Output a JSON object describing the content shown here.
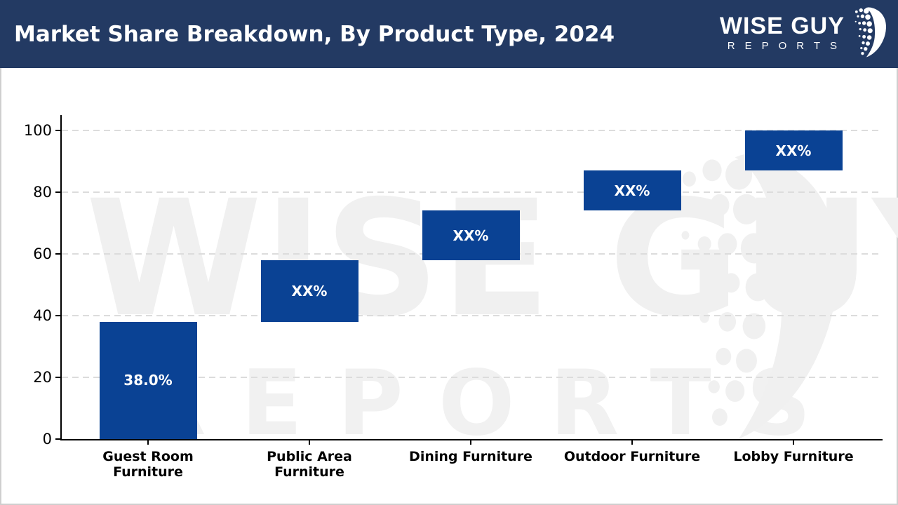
{
  "header": {
    "title": "Market Share Breakdown, By Product Type, 2024",
    "logo_line1": "WISE GUY",
    "logo_line2": "REPORTS"
  },
  "watermark": {
    "line1": "WISE GUY",
    "line2": "REPORTS"
  },
  "chart_data": {
    "type": "bar",
    "subtype": "waterfall",
    "title": "Market Share Breakdown, By Product Type, 2024",
    "categories": [
      "Guest Room Furniture",
      "Public Area Furniture",
      "Dining Furniture",
      "Outdoor Furniture",
      "Lobby Furniture"
    ],
    "category_lines": [
      [
        "Guest Room",
        "Furniture"
      ],
      [
        "Public Area",
        "Furniture"
      ],
      [
        "Dining Furniture"
      ],
      [
        "Outdoor Furniture"
      ],
      [
        "Lobby Furniture"
      ]
    ],
    "series": [
      {
        "name": "Market share (%)",
        "segments": [
          {
            "category": "Guest Room Furniture",
            "start": 0,
            "end": 38,
            "value_label": "38.0%"
          },
          {
            "category": "Public Area Furniture",
            "start": 38,
            "end": 58,
            "value_label": "XX%"
          },
          {
            "category": "Dining Furniture",
            "start": 58,
            "end": 74,
            "value_label": "XX%"
          },
          {
            "category": "Outdoor Furniture",
            "start": 74,
            "end": 87,
            "value_label": "XX%"
          },
          {
            "category": "Lobby Furniture",
            "start": 87,
            "end": 100,
            "value_label": "XX%"
          }
        ]
      }
    ],
    "yticks": [
      0,
      20,
      40,
      60,
      80,
      100
    ],
    "ylim": [
      0,
      105
    ],
    "xlabel": "",
    "ylabel": "",
    "grid": "horizontal-dashed",
    "legend": "none",
    "colors": {
      "bar": "#0a4294",
      "header_bg": "#233a63",
      "grid_line": "#dcdcdc",
      "axis": "#000000",
      "bar_label_text": "#ffffff",
      "title_text": "#ffffff",
      "watermark": "#f0f0f0"
    }
  }
}
